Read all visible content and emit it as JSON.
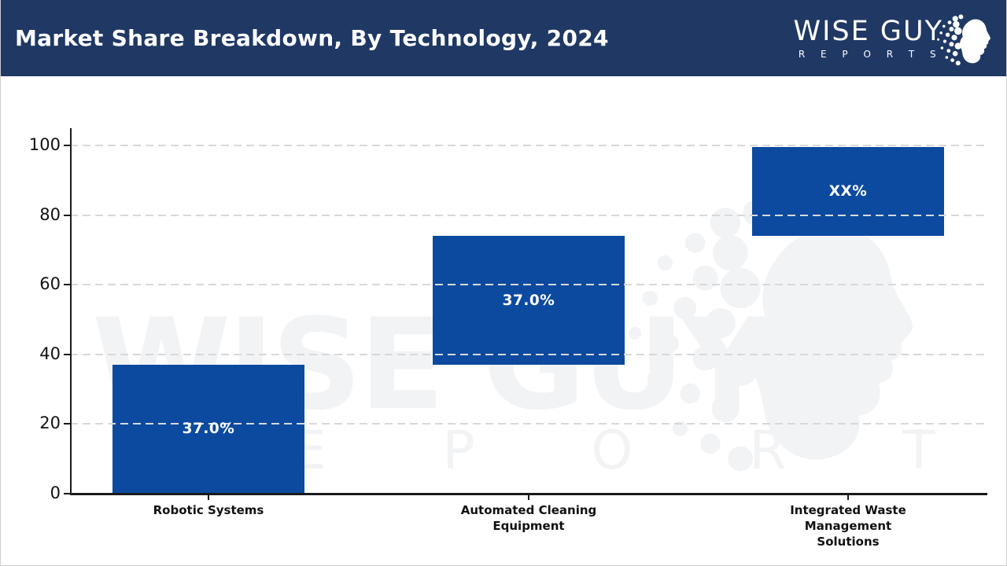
{
  "header": {
    "title": "Market Share Breakdown, By Technology, 2024",
    "logo": {
      "line1": "WISE GUY",
      "line2": "R E P O R T S"
    }
  },
  "watermark": {
    "line1": "WISE GUY",
    "line2": "R E P O R T S"
  },
  "colors": {
    "header_bg": "#1f3864",
    "bar": "#0b4a9f",
    "bar_label": "#ffffff",
    "grid": "#d8d8d8",
    "axis": "#1a1a1a",
    "watermark": "#f2f3f5"
  },
  "chart_data": {
    "type": "bar",
    "subtype": "floating-waterfall",
    "title": "Market Share Breakdown, By Technology, 2024",
    "categories": [
      "Robotic Systems",
      "Automated Cleaning Equipment",
      "Integrated Waste Management Solutions"
    ],
    "category_label_lines": [
      [
        "Robotic Systems"
      ],
      [
        "Automated Cleaning",
        "Equipment"
      ],
      [
        "Integrated Waste",
        "Management",
        "Solutions"
      ]
    ],
    "bars": [
      {
        "category": "Robotic Systems",
        "start": 0,
        "end": 37,
        "label": "37.0%"
      },
      {
        "category": "Automated Cleaning Equipment",
        "start": 37,
        "end": 74,
        "label": "37.0%"
      },
      {
        "category": "Integrated Waste Management Solutions",
        "start": 74,
        "end": 99.5,
        "label": "XX%"
      }
    ],
    "yticks": [
      0,
      20,
      40,
      60,
      80,
      100
    ],
    "ylim": [
      0,
      105
    ],
    "grid": "horizontal-dashed",
    "legend": null
  }
}
